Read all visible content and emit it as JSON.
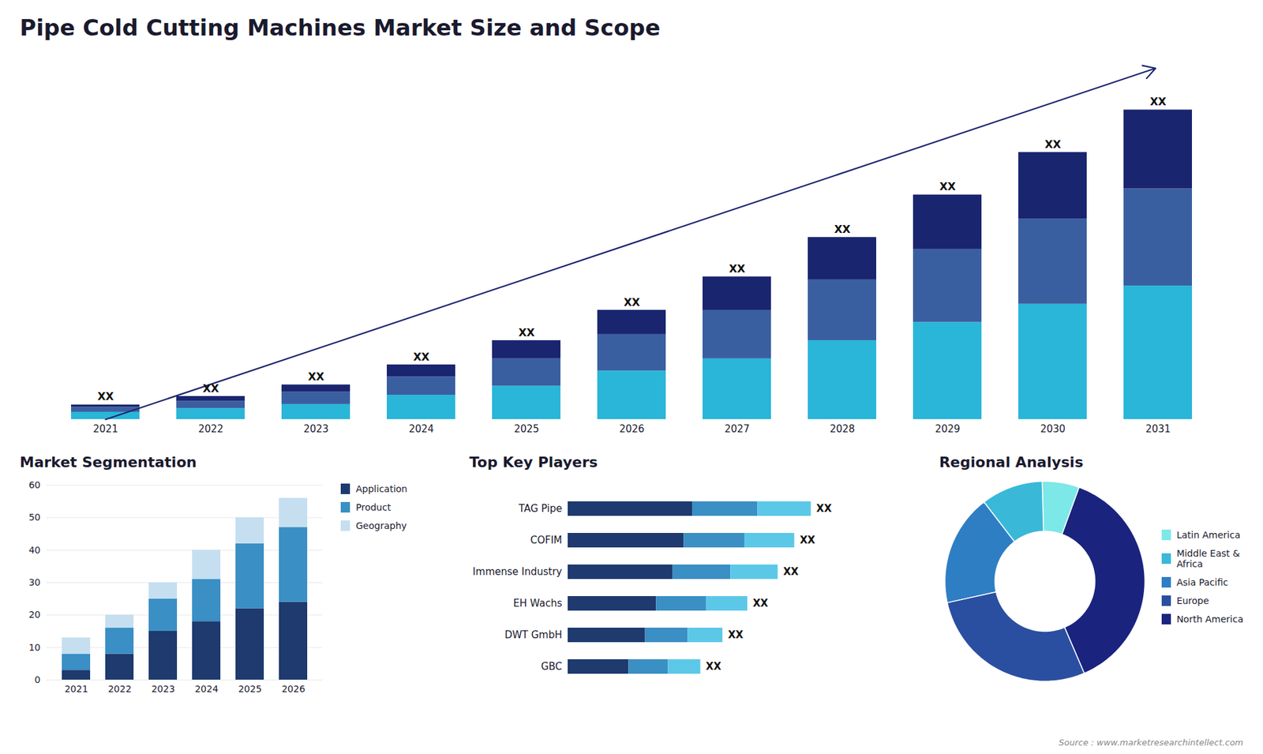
{
  "chart_data": [
    {
      "type": "bar",
      "title": "Pipe Cold Cutting Machines Market Size and Scope",
      "categories": [
        "2021",
        "2022",
        "2023",
        "2024",
        "2025",
        "2026",
        "2027",
        "2028",
        "2029",
        "2030",
        "2031"
      ],
      "stacked": true,
      "series": [
        {
          "color": "#29b6d8",
          "values": [
            1.2,
            1.8,
            2.5,
            4.0,
            5.5,
            8.0,
            10.0,
            13.0,
            16.0,
            19.0,
            22.0
          ]
        },
        {
          "color": "#3a5fa0",
          "values": [
            0.8,
            1.2,
            2.0,
            3.0,
            4.5,
            6.0,
            8.0,
            10.0,
            12.0,
            14.0,
            16.0
          ]
        },
        {
          "color": "#1a2570",
          "values": [
            0.4,
            0.8,
            1.2,
            2.0,
            3.0,
            4.0,
            5.5,
            7.0,
            9.0,
            11.0,
            13.0
          ]
        }
      ],
      "ylim": [
        0,
        58
      ],
      "tick_labels": "x",
      "grid": false,
      "annotations": [
        "XX",
        "XX",
        "XX",
        "XX",
        "XX",
        "XX",
        "XX",
        "XX",
        "XX",
        "XX",
        "XX"
      ]
    },
    {
      "type": "bar",
      "title": "Market Segmentation",
      "categories": [
        "2021",
        "2022",
        "2023",
        "2024",
        "2025",
        "2026"
      ],
      "stacked": true,
      "series": [
        {
          "name": "Application",
          "color": "#1e3a6e",
          "values": [
            3,
            8,
            15,
            18,
            22,
            24
          ]
        },
        {
          "name": "Product",
          "color": "#3a8fc4",
          "values": [
            5,
            8,
            10,
            13,
            20,
            23
          ]
        },
        {
          "name": "Geography",
          "color": "#c5dff0",
          "values": [
            5,
            4,
            5,
            9,
            8,
            9
          ]
        }
      ],
      "ylim": [
        0,
        60
      ],
      "yticks": [
        0,
        10,
        20,
        30,
        40,
        50,
        60
      ],
      "grid": true,
      "legend": "right"
    },
    {
      "type": "bar",
      "title": "Top Key Players",
      "orientation": "horizontal",
      "stacked": true,
      "categories": [
        "TAG Pipe",
        "COFIM",
        "Immense Industry",
        "EH Wachs",
        "DWT GmbH",
        "GBC"
      ],
      "series": [
        {
          "color": "#1e3a6e",
          "values": [
            0.45,
            0.42,
            0.38,
            0.32,
            0.28,
            0.22
          ]
        },
        {
          "color": "#3a8fc4",
          "values": [
            0.2365,
            0.22,
            0.209,
            0.1815,
            0.154,
            0.143
          ]
        },
        {
          "color": "#5cc8e8",
          "values": [
            0.1935,
            0.18,
            0.171,
            0.1485,
            0.126,
            0.117
          ]
        }
      ],
      "xlim": [
        0,
        1
      ],
      "tick_labels": "y",
      "annotations": [
        "XX",
        "XX",
        "XX",
        "XX",
        "XX",
        "XX"
      ]
    },
    {
      "type": "donut",
      "title": "Regional Analysis",
      "categories": [
        "Latin America",
        "Middle East &\nAfrica",
        "Asia Pacific",
        "Europe",
        "North America"
      ],
      "values": [
        6,
        10,
        18,
        28,
        38
      ],
      "colors": [
        "#7de8e8",
        "#3ab8d8",
        "#2e7ec4",
        "#2a4fa0",
        "#1a237e"
      ],
      "legend": "right",
      "caption": "Source : www.marketresearchintellect.com"
    }
  ]
}
